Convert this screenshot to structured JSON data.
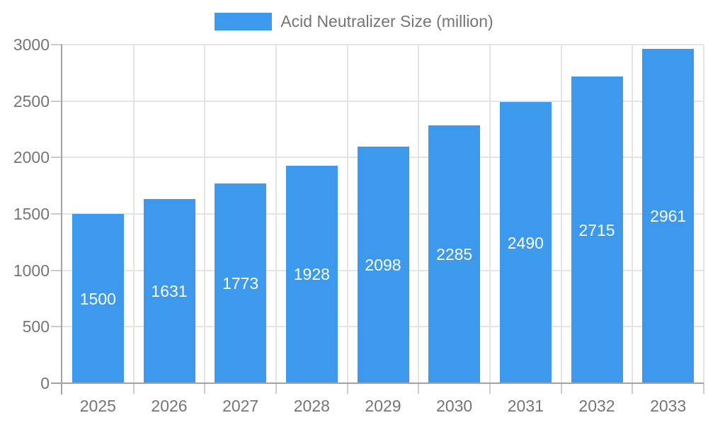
{
  "chart_data": {
    "type": "bar",
    "title": "Acid Neutralizer Size (million)",
    "legend": [
      "Acid Neutralizer Size (million)"
    ],
    "legend_position": "top-center",
    "categories": [
      "2025",
      "2026",
      "2027",
      "2028",
      "2029",
      "2030",
      "2031",
      "2032",
      "2033"
    ],
    "values": [
      1500,
      1631,
      1773,
      1928,
      2098,
      2285,
      2490,
      2715,
      2961
    ],
    "xlabel": "",
    "ylabel": "",
    "ylim": [
      0,
      3000
    ],
    "yticks": [
      0,
      500,
      1000,
      1500,
      2000,
      2500,
      3000
    ],
    "grid": true,
    "colors": {
      "bar": "#3C99EC",
      "grid": "#e4e4e4",
      "tick": "#cccccc",
      "axis": "#a3a3a3",
      "text": "#757575",
      "value_label": "#ffffff",
      "background": "#ffffff"
    }
  }
}
